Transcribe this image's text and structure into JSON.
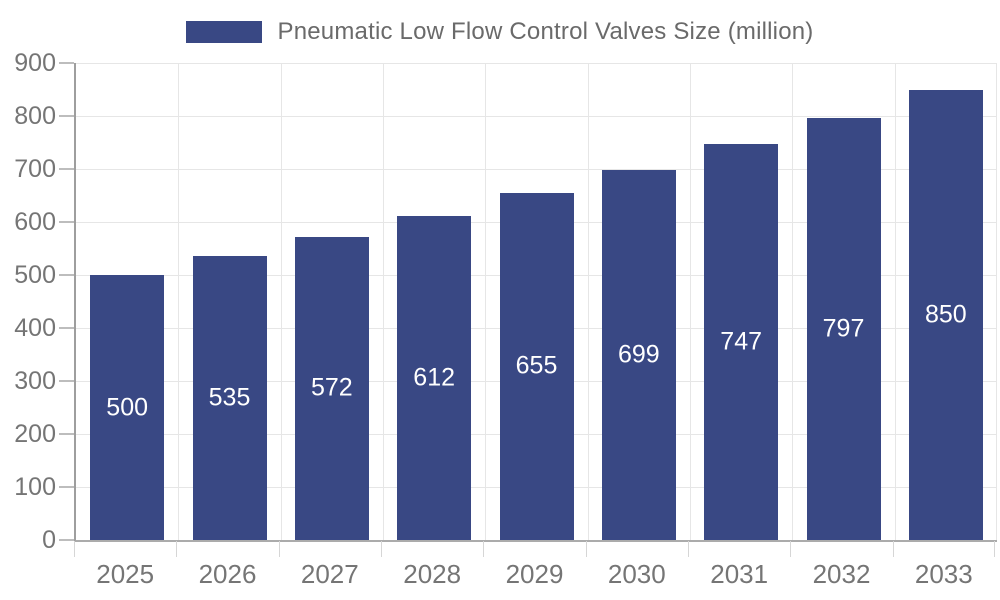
{
  "legend": {
    "label": "Pneumatic Low Flow Control Valves Size (million)"
  },
  "chart_data": {
    "type": "bar",
    "title": "Pneumatic Low Flow Control Valves Size (million)",
    "categories": [
      "2025",
      "2026",
      "2027",
      "2028",
      "2029",
      "2030",
      "2031",
      "2032",
      "2033"
    ],
    "values": [
      500,
      535,
      572,
      612,
      655,
      699,
      747,
      797,
      850
    ],
    "bar_labels": [
      "500",
      "535",
      "572",
      "612",
      "655",
      "699",
      "747",
      "797",
      "850"
    ],
    "xlabel": "",
    "ylabel": "",
    "ylim": [
      0,
      900
    ],
    "yticks": [
      0,
      100,
      200,
      300,
      400,
      500,
      600,
      700,
      800,
      900
    ],
    "grid": true,
    "legend_position": "top-center",
    "colors": {
      "bar": "#394884",
      "bar_label_text": "#ffffff",
      "axis_text": "#757575",
      "legend_text": "#6a6a6a",
      "gridline": "#e6e6e6",
      "axis_line": "#9e9e9e"
    }
  }
}
